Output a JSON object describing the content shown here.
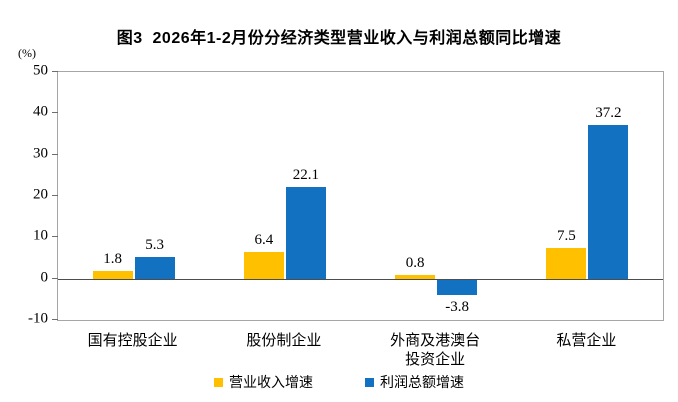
{
  "title": "图3  2026年1-2月份分经济类型营业收入与利润总额同比增速",
  "unit_label": "(%)",
  "colors": {
    "series_revenue": "#FFC000",
    "series_profit": "#1271C0",
    "plot_border": "#A6A6A6",
    "zero_line": "#4D4D4D",
    "text": "#000000"
  },
  "chart_data": {
    "type": "bar",
    "categories": [
      "国有控股企业",
      "股份制企业",
      "外商及港澳台\n投资企业",
      "私营企业"
    ],
    "series": [
      {
        "name": "营业收入增速",
        "color": "#FFC000",
        "values": [
          1.8,
          6.4,
          0.8,
          7.5
        ]
      },
      {
        "name": "利润总额增速",
        "color": "#1271C0",
        "values": [
          5.3,
          22.1,
          -3.8,
          37.2
        ]
      }
    ],
    "title": "图3  2026年1-2月份分经济类型营业收入与利润总额同比增速",
    "xlabel": "",
    "ylabel": "(%)",
    "ylim": [
      -10,
      50
    ],
    "yticks": [
      50,
      40,
      30,
      20,
      10,
      0,
      -10
    ],
    "grid": false,
    "legend_position": "bottom"
  }
}
